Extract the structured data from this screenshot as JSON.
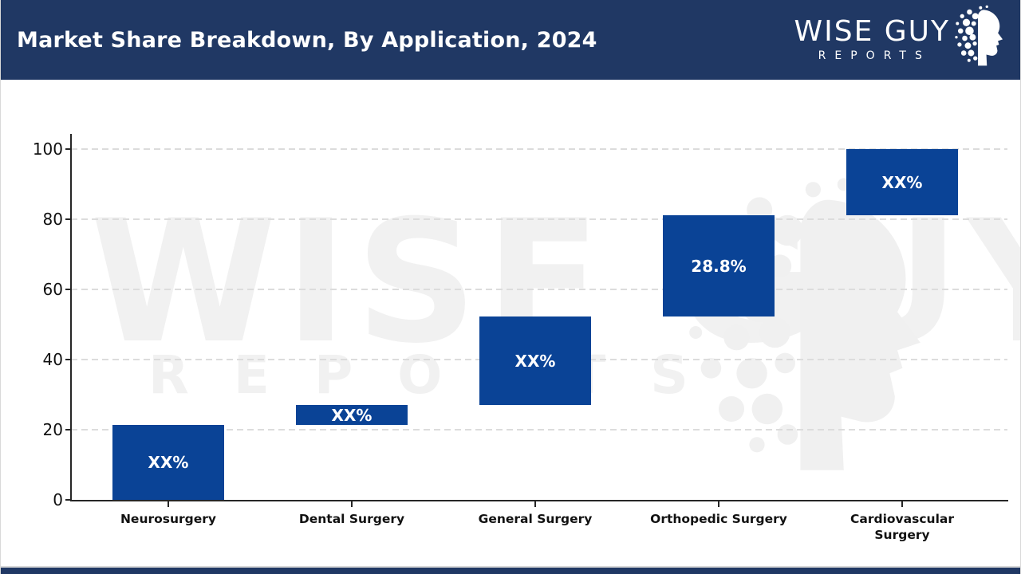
{
  "header": {
    "title": "Market Share Breakdown, By Application, 2024",
    "logo": {
      "line1": "WISE GUY",
      "line2": "REPORTS"
    }
  },
  "watermark": {
    "line1": "WISE GUY",
    "line2": "REPORTS"
  },
  "chart_data": {
    "type": "bar",
    "subtype": "waterfall",
    "title": "Market Share Breakdown, By Application, 2024",
    "categories": [
      "Neurosurgery",
      "Dental Surgery",
      "General Surgery",
      "Orthopedic Surgery",
      "Cardiovascular Surgery"
    ],
    "segments": [
      {
        "category": "Neurosurgery",
        "start": 0,
        "end": 21.4,
        "label": "XX%"
      },
      {
        "category": "Dental Surgery",
        "start": 21.4,
        "end": 27.0,
        "label": "XX%"
      },
      {
        "category": "General Surgery",
        "start": 27.0,
        "end": 52.3,
        "label": "XX%"
      },
      {
        "category": "Orthopedic Surgery",
        "start": 52.3,
        "end": 81.1,
        "label": "28.8%"
      },
      {
        "category": "Cardiovascular Surgery",
        "start": 81.1,
        "end": 100,
        "label": "XX%"
      }
    ],
    "y_ticks": [
      0,
      20,
      40,
      60,
      80,
      100
    ],
    "ylim": [
      0,
      100
    ],
    "xlabel": "",
    "ylabel": "",
    "grid": "horizontal-dashed",
    "legend": "none",
    "bar_color": "#0a4396",
    "label_color": "#ffffff"
  }
}
